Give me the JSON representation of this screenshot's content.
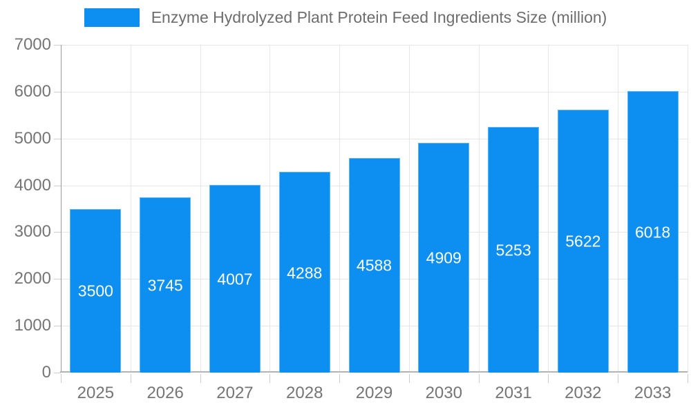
{
  "chart_data": {
    "type": "bar",
    "title": "Enzyme Hydrolyzed Plant Protein Feed Ingredients Size (million)",
    "categories": [
      "2025",
      "2026",
      "2027",
      "2028",
      "2029",
      "2030",
      "2031",
      "2032",
      "2033"
    ],
    "values": [
      3500,
      3745,
      4007,
      4288,
      4588,
      4909,
      5253,
      5622,
      6018
    ],
    "series_name": "Enzyme Hydrolyzed Plant Protein Feed Ingredients Size (million)",
    "xlabel": "",
    "ylabel": "",
    "ylim": [
      0,
      7000
    ],
    "ytick_step": 1000,
    "ytick_labels": [
      "0",
      "1000",
      "2000",
      "3000",
      "4000",
      "5000",
      "6000",
      "7000"
    ],
    "grid": true,
    "legend_position": "top",
    "data_labels": "inside-center, white",
    "colors": {
      "bar": "#0d8ff2",
      "bar_value_text": "#ffffff",
      "axis_text": "#757575",
      "legend_text": "#6d6d6d",
      "gridline": "#e6e6e6",
      "axis_line": "#999999"
    }
  }
}
